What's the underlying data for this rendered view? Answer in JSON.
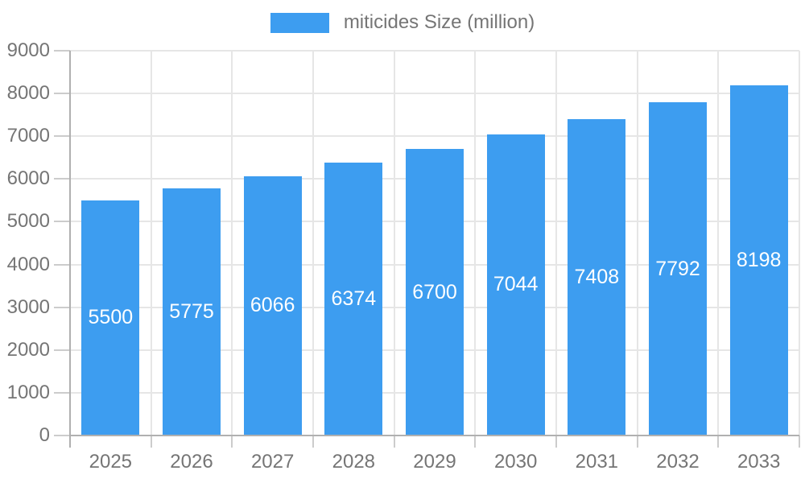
{
  "legend": {
    "label": "miticides Size (million)"
  },
  "chart_data": {
    "type": "bar",
    "title": "miticides Size (million)",
    "categories": [
      "2025",
      "2026",
      "2027",
      "2028",
      "2029",
      "2030",
      "2031",
      "2032",
      "2033"
    ],
    "values": [
      5500,
      5775,
      6066,
      6374,
      6700,
      7044,
      7408,
      7792,
      8198
    ],
    "series": [
      {
        "name": "miticides Size (million)",
        "values": [
          5500,
          5775,
          6066,
          6374,
          6700,
          7044,
          7408,
          7792,
          8198
        ]
      }
    ],
    "xlabel": "",
    "ylabel": "",
    "ylim": [
      0,
      9000
    ],
    "y_ticks": [
      0,
      1000,
      2000,
      3000,
      4000,
      5000,
      6000,
      7000,
      8000,
      9000
    ],
    "grid": true,
    "legend_position": "top",
    "bar_labels_inside": true
  },
  "style": {
    "bar_color": "#3D9DF0",
    "bar_label_color": "#FFFFFF",
    "grid_color": "#E6E6E6",
    "tick_color": "#CCCCCC",
    "axis_color": "#B0B0B0",
    "text_color": "#757575",
    "background_color": "#FFFFFF"
  }
}
